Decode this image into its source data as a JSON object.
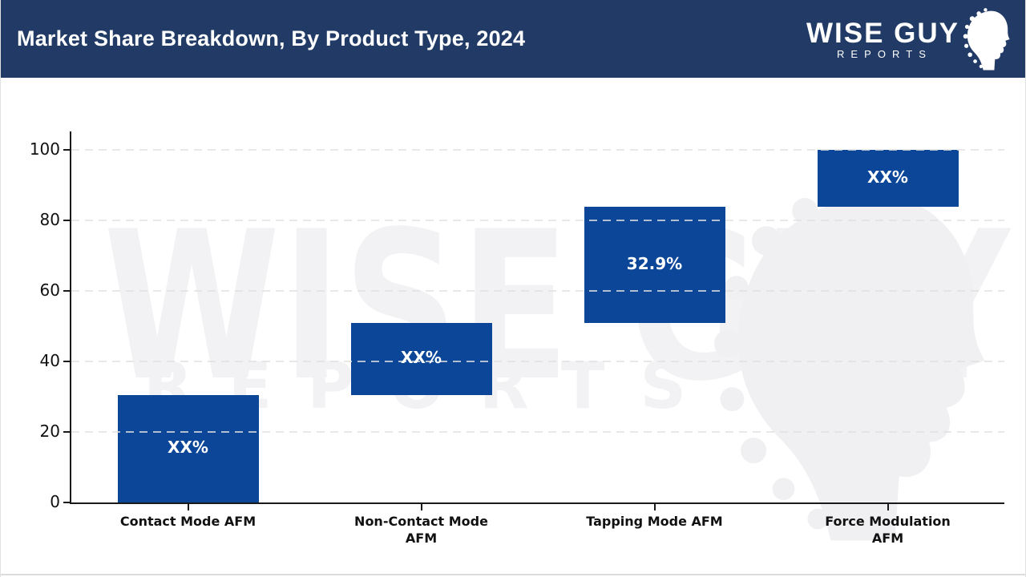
{
  "header": {
    "title": "Market Share Breakdown, By Product Type, 2024",
    "logo": {
      "line1": "WISE GUY",
      "line2": "REPORTS"
    }
  },
  "watermark": {
    "line1": "WISE GUY",
    "line2": "REPORTS"
  },
  "colors": {
    "header_bg": "#213a66",
    "bar": "#0b4699",
    "bar_label_text": "#ffffff",
    "axis": "#1a1a1a",
    "gridline": "rgba(225,225,225,0.78)",
    "watermark": "#f2f2f4",
    "logo_text": "#ffffff"
  },
  "chart_data": {
    "type": "bar",
    "variant": "floating-waterfall-segments",
    "title": "Market Share Breakdown, By Product Type, 2024",
    "categories": [
      "Contact Mode AFM",
      "Non-Contact Mode AFM",
      "Tapping Mode AFM",
      "Force Modulation AFM"
    ],
    "category_label_lines": [
      [
        "Contact Mode AFM"
      ],
      [
        "Non-Contact Mode",
        "AFM"
      ],
      [
        "Tapping Mode AFM"
      ],
      [
        "Force Modulation",
        "AFM"
      ]
    ],
    "bars": [
      {
        "category": "Contact Mode AFM",
        "start": 0,
        "end": 30.4,
        "label": "XX%"
      },
      {
        "category": "Non-Contact Mode AFM",
        "start": 30.4,
        "end": 50.9,
        "label": "XX%"
      },
      {
        "category": "Tapping Mode AFM",
        "start": 50.9,
        "end": 83.8,
        "label": "32.9%"
      },
      {
        "category": "Force Modulation AFM",
        "start": 83.8,
        "end": 100,
        "label": "XX%"
      }
    ],
    "y_ticks": [
      0,
      20,
      40,
      60,
      80,
      100
    ],
    "ylim": [
      0,
      104
    ],
    "xlabel": "",
    "ylabel": "",
    "grid": "horizontal dashed, drawn over bars",
    "legend": false
  }
}
